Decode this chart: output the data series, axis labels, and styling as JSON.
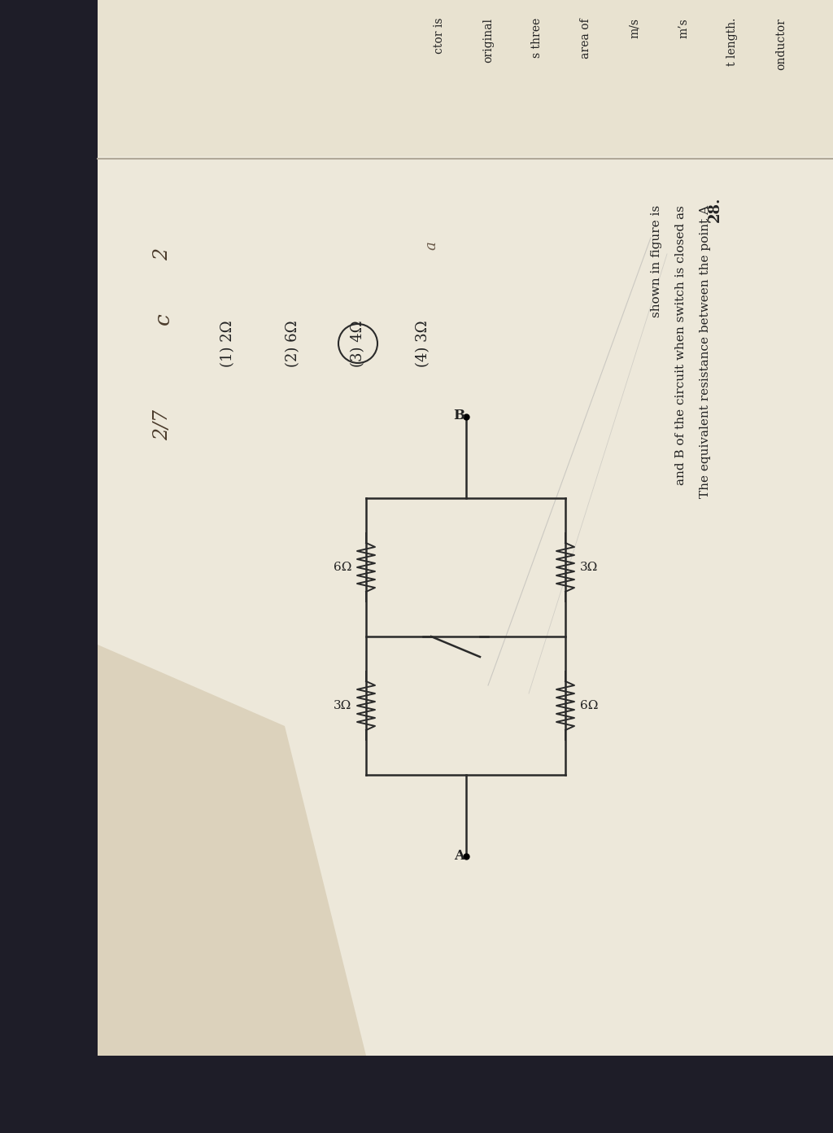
{
  "bg_outer": "#2a2835",
  "bg_left_dark": "#1e1d28",
  "paper_color_main": "#ede8da",
  "paper_color_top": "#e8e2d0",
  "shadow_color": "#c8bfaa",
  "line_color": "#2a2a2a",
  "text_color": "#222222",
  "text_color_light": "#555555",
  "rotation_deg": -90,
  "question_number": "28.",
  "question_line1": "The equivalent resistance between the point A",
  "question_line2": "and B of the circuit when switch is closed as",
  "question_line3": "shown in figure is",
  "options": [
    "(1) 2Ω",
    "(2) 6Ω",
    "(3) 4Ω",
    "(4) 3Ω"
  ],
  "circled_option": 2,
  "sidebar_texts": [
    "onductor",
    "t length.",
    "m’s",
    "m/s",
    "area of",
    "s three",
    "original",
    "ctor is"
  ],
  "resistor_labels": {
    "top_right": "6Ω",
    "top_left": "3Ω",
    "bot_right": "3Ω",
    "bot_left": "6Ω"
  },
  "point_A_label": "A",
  "point_B_label": "B",
  "handwritten_frac": "2/7",
  "handwritten_c": "c",
  "handwritten_2": "2"
}
